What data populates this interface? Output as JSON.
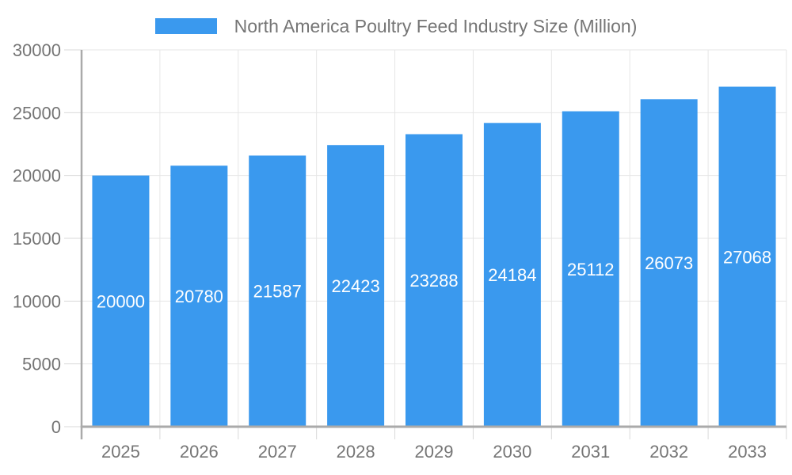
{
  "legend": {
    "label": "North America Poultry Feed Industry Size (Million)"
  },
  "chart_data": {
    "type": "bar",
    "title": "North America Poultry Feed Industry Size (Million)",
    "categories": [
      "2025",
      "2026",
      "2027",
      "2028",
      "2029",
      "2030",
      "2031",
      "2032",
      "2033"
    ],
    "values": [
      20000,
      20780,
      21587,
      22423,
      23288,
      24184,
      25112,
      26073,
      27068
    ],
    "xlabel": "",
    "ylabel": "",
    "ylim": [
      0,
      30000
    ],
    "ytick_step": 5000,
    "ytick_labels": [
      "0",
      "5000",
      "10000",
      "15000",
      "20000",
      "25000",
      "30000"
    ],
    "grid": true,
    "legend_position": "top-center",
    "bar_color": "#3a99ee",
    "value_label_color": "#ffffff",
    "axis_label_color": "#757575",
    "grid_color": "#e6e6e6",
    "tick_color": "#d9d9d9",
    "axis_line_color": "#aaaaaa"
  }
}
